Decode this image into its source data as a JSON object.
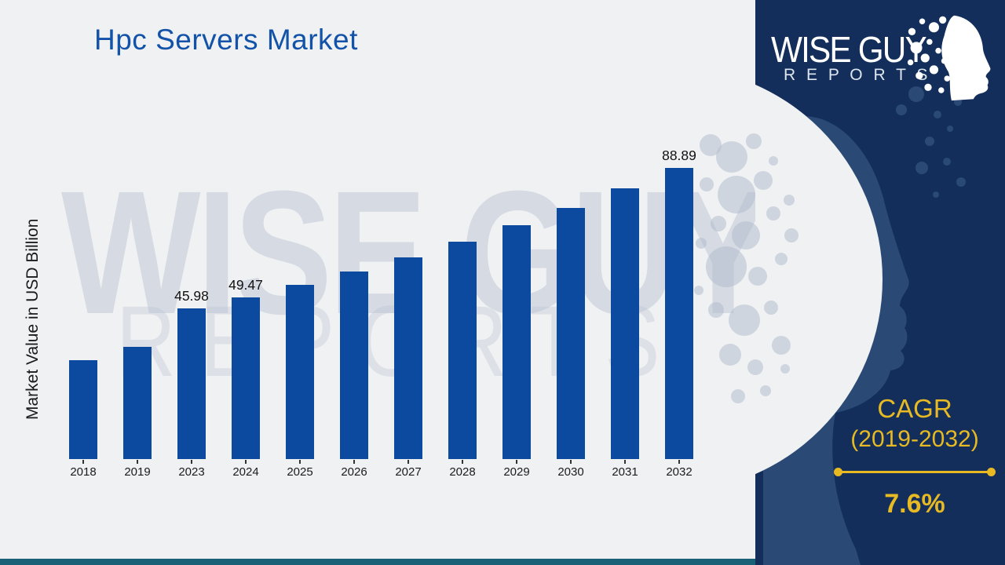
{
  "title": "Hpc Servers Market",
  "watermark": {
    "line1": "WISE GUY",
    "line2": "REPORTS"
  },
  "logo": {
    "line1": "WISE GUY",
    "line2": "R E P O R T S"
  },
  "cagr": {
    "heading": "CAGR",
    "range": "(2019-2032)",
    "value": "7.6%"
  },
  "colors": {
    "bg": "#f0f1f2",
    "bar_color": "#0c4aa0",
    "panel_navy": "#132e5a",
    "accent_gold": "#e7ba23",
    "teal": "#1a6077",
    "title_blue": "#1252a8"
  },
  "chart_data": {
    "type": "bar",
    "title": "Hpc Servers Market",
    "xlabel": "",
    "ylabel": "Market Value in USD Billion",
    "categories": [
      "2018",
      "2019",
      "2023",
      "2024",
      "2025",
      "2026",
      "2027",
      "2028",
      "2029",
      "2030",
      "2031",
      "2032"
    ],
    "values": [
      30.2,
      34.3,
      45.98,
      49.47,
      53.23,
      57.27,
      61.63,
      66.31,
      71.35,
      76.77,
      82.61,
      88.89
    ],
    "value_labels": [
      "",
      "",
      "45.98",
      "49.47",
      "",
      "",
      "",
      "",
      "",
      "",
      "",
      "88.89"
    ],
    "ylim": [
      0,
      95
    ],
    "grid": false,
    "legend": null,
    "cagr_pct": 7.6,
    "cagr_range": "2019-2032"
  }
}
